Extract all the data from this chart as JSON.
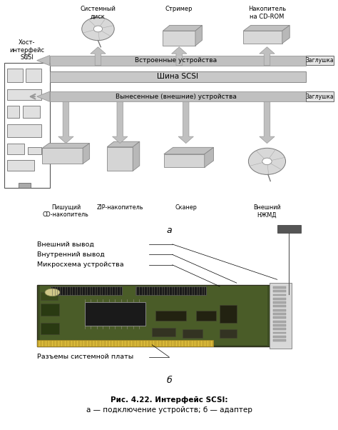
{
  "bg_color": "#ffffff",
  "fig_width": 4.74,
  "fig_height": 6.02,
  "dpi": 100,
  "title_caption": "Рис. 4.22. Интерфейс SCSI:",
  "subtitle_caption": "а — подключение устройств; б — адаптер",
  "label_a": "а",
  "label_b": "б",
  "top_labels": {
    "host": "Хост-\nинтерфейс\nSCSI",
    "disk": "Системный\nдиск",
    "streamer": "Стример",
    "cdrom": "Накопитель\nна CD-ROM"
  },
  "arrow_built_in_label": "Встроенные устройства",
  "zaglu_top": "Заглушка",
  "scsi_bus_label": "Шина SCSI",
  "arrow_external_label": "Вынесенные (внешние) устройства",
  "zaglu_bot": "Заглушка",
  "bottom_labels": {
    "cd_writer": "Пишущий\nCD-накопитель",
    "zip": "ZIP-накопитель",
    "scanner": "Сканер",
    "njmd": "Внешний\nНЖМД"
  },
  "board_labels": {
    "ext_out": "Внешний вывод",
    "int_out": "Внутренний вывод",
    "chip": "Микросхема устройства",
    "connectors": "Разъемы системной платы"
  },
  "arrow_color": "#c0c0c0",
  "bus_color": "#c8c8c8",
  "border_color": "#555555",
  "text_color": "#000000"
}
